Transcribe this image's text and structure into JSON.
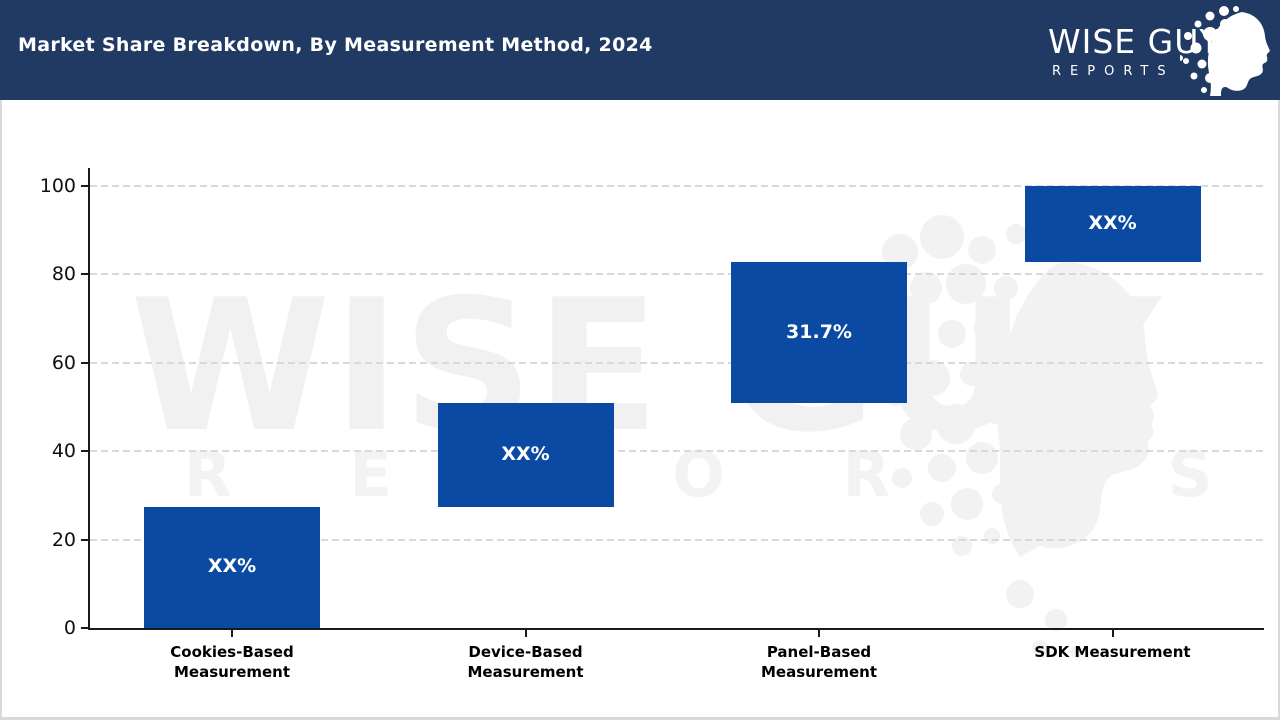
{
  "header": {
    "title": "Market Share Breakdown, By Measurement Method, 2024",
    "logo": {
      "wordmark": "WISE GUY",
      "reports": "REPORTS",
      "head_icon": "dotted-head-profile-icon"
    }
  },
  "watermark": {
    "line1": "WISE GUY",
    "line2": "R E P O R T S",
    "head_icon": "dotted-head-profile-watermark"
  },
  "chart_data": {
    "type": "bar",
    "subtype": "floating-waterfall-bars",
    "title": "Market Share Breakdown, By Measurement Method, 2024",
    "categories": [
      "Cookies-Based\nMeasurement",
      "Device-Based\nMeasurement",
      "Panel-Based\nMeasurement",
      "SDK Measurement"
    ],
    "segments": [
      {
        "category": "Cookies-Based Measurement",
        "label": "XX%",
        "start": 0,
        "end": 27.4
      },
      {
        "category": "Device-Based Measurement",
        "label": "XX%",
        "start": 27.4,
        "end": 51.0
      },
      {
        "category": "Panel-Based Measurement",
        "label": "31.7%",
        "start": 51.0,
        "end": 82.7
      },
      {
        "category": "SDK Measurement",
        "label": "XX%",
        "start": 82.7,
        "end": 100
      }
    ],
    "ylim": [
      0,
      100
    ],
    "yticks": [
      0,
      20,
      40,
      60,
      80,
      100
    ],
    "xlabel": "",
    "ylabel": "",
    "grid": "horizontal-dashed",
    "legend": "none",
    "bar_color": "#0b4aa2"
  },
  "colors": {
    "header_bg": "#203a64",
    "bar": "#0b4aa2",
    "grid": "#d9d9d9",
    "axis": "#1a1a1a",
    "watermark": "#f1f1f1",
    "page_border": "#d9d9d9",
    "bar_label_text": "#ffffff"
  }
}
